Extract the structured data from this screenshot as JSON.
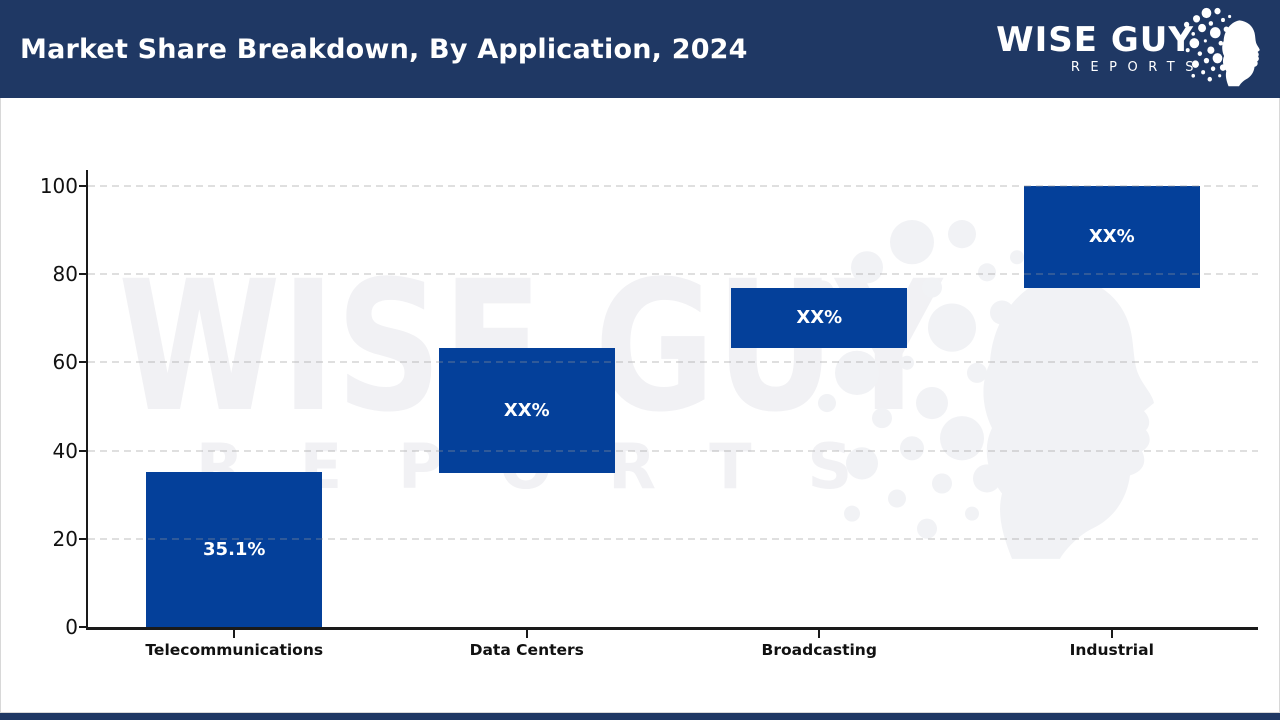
{
  "header": {
    "title": "Market Share Breakdown, By Application, 2024",
    "logo": {
      "line1": "WISE GUY",
      "line2": "REPORTS"
    }
  },
  "watermark": {
    "line1": "WISE GUY",
    "line2": "REPORTS"
  },
  "chart_data": {
    "type": "bar",
    "subtype": "waterfall-floating-bars",
    "title": "Market Share Breakdown, By Application, 2024",
    "xlabel": "",
    "ylabel": "",
    "categories": [
      "Telecommunications",
      "Data Centers",
      "Broadcasting",
      "Industrial"
    ],
    "segments": [
      {
        "category": "Telecommunications",
        "start": 0,
        "end": 35.1,
        "label": "35.1%"
      },
      {
        "category": "Data Centers",
        "start": 35,
        "end": 63.3,
        "label": "XX%"
      },
      {
        "category": "Broadcasting",
        "start": 63.3,
        "end": 76.9,
        "label": "XX%"
      },
      {
        "category": "Industrial",
        "start": 76.9,
        "end": 100,
        "label": "XX%"
      }
    ],
    "ylim": [
      0,
      100
    ],
    "yticks": [
      0,
      20,
      40,
      60,
      80,
      100
    ],
    "grid": "horizontal-dashed, drawn over bars",
    "legend": "none",
    "bar_color": "#04409a",
    "bar_label_color": "#ffffff",
    "header_color": "#1f3864",
    "watermark_color": "#f1f1f4"
  }
}
